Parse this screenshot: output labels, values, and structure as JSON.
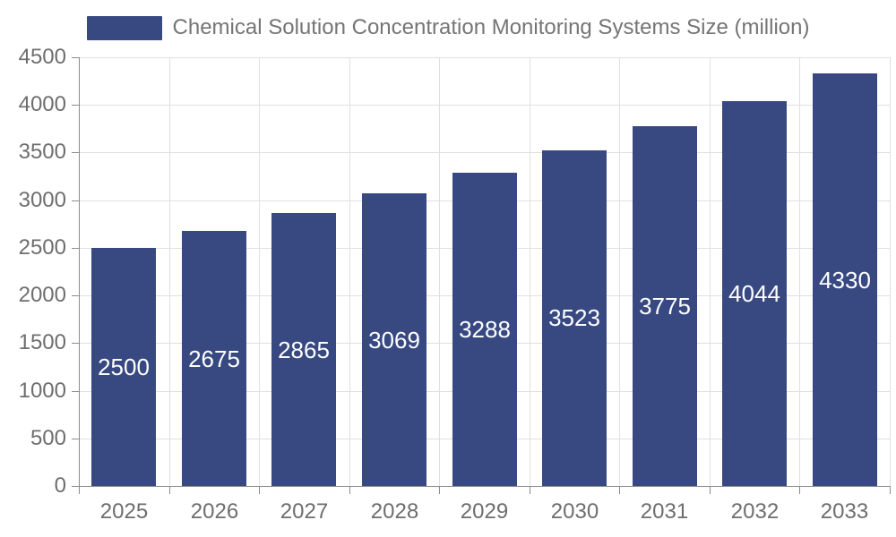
{
  "chart_data": {
    "type": "bar",
    "title": "Chemical Solution Concentration Monitoring Systems Size (million)",
    "categories": [
      "2025",
      "2026",
      "2027",
      "2028",
      "2029",
      "2030",
      "2031",
      "2032",
      "2033"
    ],
    "values": [
      2500,
      2675,
      2865,
      3069,
      3288,
      3523,
      3775,
      4044,
      4330
    ],
    "xlabel": "",
    "ylabel": "",
    "ylim": [
      0,
      4500
    ],
    "yticks": [
      0,
      500,
      1000,
      1500,
      2000,
      2500,
      3000,
      3500,
      4000,
      4500
    ],
    "grid": true,
    "legend_position": "top",
    "value_labels": "inside-center",
    "colors": {
      "bar": "#384982",
      "value_label": "#ffffff",
      "grid_line": "#e0e0e0",
      "axis_line": "#8c8c8c",
      "axis_label": "#6e6e6e",
      "legend_label": "#757575",
      "background": "#ffffff"
    }
  }
}
